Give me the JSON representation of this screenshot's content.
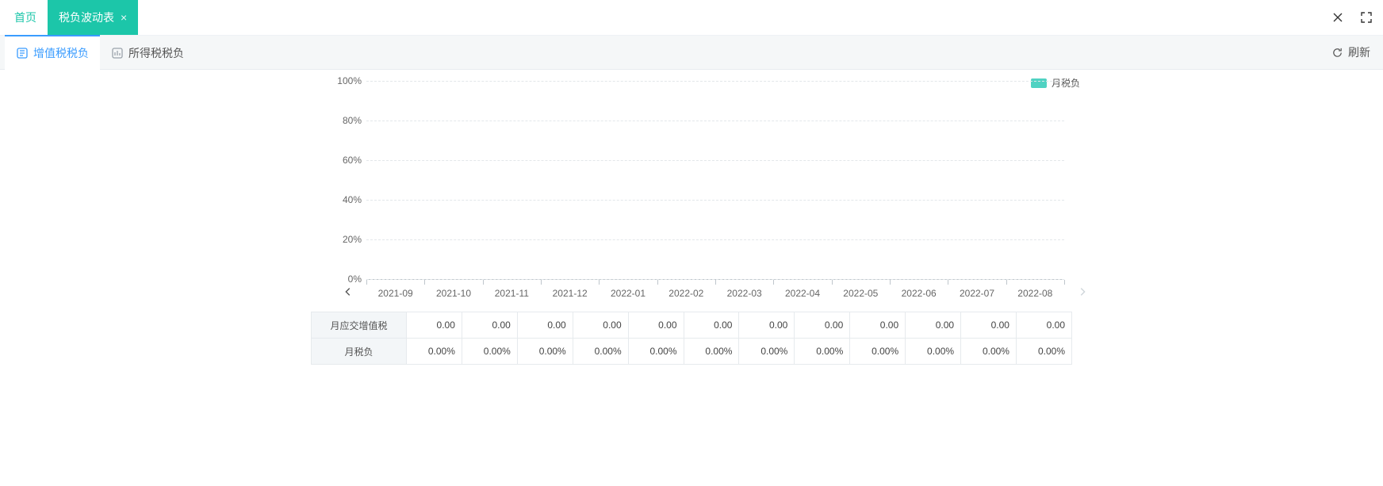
{
  "topTabs": {
    "home": "首页",
    "active": "税负波动表"
  },
  "subTabs": {
    "vat": "增值税税负",
    "income": "所得税税负"
  },
  "actions": {
    "refresh": "刷新"
  },
  "legend": {
    "label": "月税负",
    "color": "#50d2c2"
  },
  "chart": {
    "type": "bar",
    "y": {
      "ticks": [
        0,
        20,
        40,
        60,
        80,
        100
      ],
      "labels": [
        "0%",
        "20%",
        "40%",
        "60%",
        "80%",
        "100%"
      ],
      "min": 0,
      "max": 100
    },
    "x": {
      "categories": [
        "2021-09",
        "2021-10",
        "2021-11",
        "2021-12",
        "2022-01",
        "2022-02",
        "2022-03",
        "2022-04",
        "2022-05",
        "2022-06",
        "2022-07",
        "2022-08"
      ]
    },
    "series": {
      "monthly_tax_burden": [
        0,
        0,
        0,
        0,
        0,
        0,
        0,
        0,
        0,
        0,
        0,
        0
      ]
    },
    "colors": {
      "grid": "#e3e7ea",
      "axis": "#bfc6cc",
      "bar": "#50d2c2",
      "background": "#ffffff"
    }
  },
  "table": {
    "rows": [
      {
        "header": "月应交增值税",
        "values": [
          "0.00",
          "0.00",
          "0.00",
          "0.00",
          "0.00",
          "0.00",
          "0.00",
          "0.00",
          "0.00",
          "0.00",
          "0.00",
          "0.00"
        ]
      },
      {
        "header": "月税负",
        "values": [
          "0.00%",
          "0.00%",
          "0.00%",
          "0.00%",
          "0.00%",
          "0.00%",
          "0.00%",
          "0.00%",
          "0.00%",
          "0.00%",
          "0.00%",
          "0.00%"
        ]
      }
    ]
  }
}
